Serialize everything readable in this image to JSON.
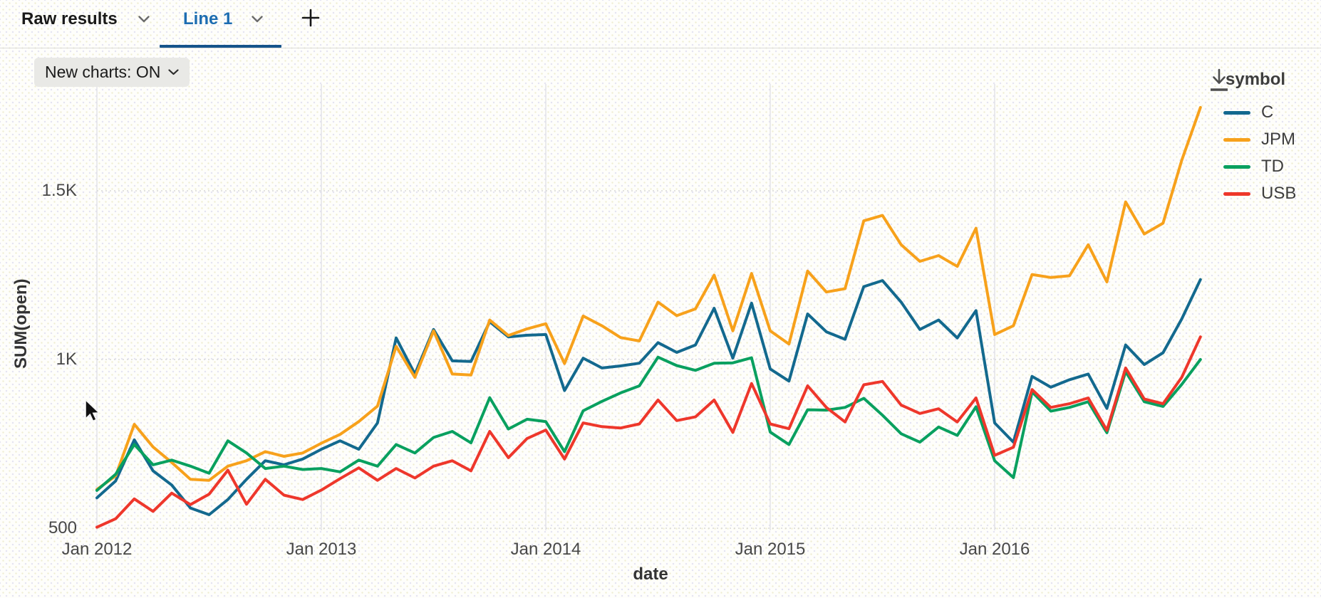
{
  "tab_bar": {
    "tabs": [
      {
        "label": "Raw results",
        "active": false
      },
      {
        "label": "Line 1",
        "active": true
      }
    ],
    "add_tab_label": "+"
  },
  "toolbar": {
    "new_charts_button": "New charts: ON"
  },
  "legend": {
    "title": "symbol"
  },
  "colors": {
    "active_tab_text": "#1d6db1",
    "active_tab_underline": "#15548a",
    "c_series": "#13698e",
    "jpm_series": "#f7a11b",
    "td_series": "#09a05f",
    "usb_series": "#ee372b"
  },
  "chart_data": {
    "type": "line",
    "xlabel": "date",
    "ylabel": "SUM(open)",
    "x_unit": "month",
    "x_start_label": "Jan 2012",
    "x_end_label": "Dec 2016",
    "legend_position": "top-right",
    "grid": {
      "horizontal": "dotted",
      "vertical": "solid"
    },
    "ylim": [
      440,
      1800
    ],
    "x_ticks": [
      {
        "label": "Jan 2012",
        "month_index": 0
      },
      {
        "label": "Jan 2013",
        "month_index": 12
      },
      {
        "label": "Jan 2014",
        "month_index": 24
      },
      {
        "label": "Jan 2015",
        "month_index": 36
      },
      {
        "label": "Jan 2016",
        "month_index": 48
      }
    ],
    "y_ticks": [
      {
        "label": "500",
        "value": 500
      },
      {
        "label": "1K",
        "value": 1000
      },
      {
        "label": "1.5K",
        "value": 1500
      }
    ],
    "series": [
      {
        "name": "C",
        "color": "#13698e",
        "values": [
          590,
          640,
          762,
          670,
          628,
          560,
          540,
          585,
          645,
          700,
          688,
          705,
          734,
          759,
          734,
          812,
          1064,
          957,
          1089,
          996,
          994,
          1112,
          1067,
          1072,
          1074,
          908,
          1004,
          975,
          981,
          989,
          1050,
          1021,
          1043,
          1152,
          1004,
          1167,
          972,
          936,
          1135,
          1082,
          1060,
          1216,
          1234,
          1170,
          1089,
          1117,
          1064,
          1145,
          812,
          755,
          950,
          918,
          940,
          957,
          855,
          1043,
          985,
          1020,
          1120,
          1237
        ]
      },
      {
        "name": "JPM",
        "color": "#f7a11b",
        "values": [
          615,
          655,
          808,
          741,
          695,
          645,
          642,
          684,
          700,
          727,
          713,
          723,
          752,
          778,
          816,
          862,
          1039,
          947,
          1085,
          957,
          954,
          1117,
          1071,
          1091,
          1106,
          988,
          1129,
          1100,
          1065,
          1055,
          1170,
          1130,
          1150,
          1250,
          1085,
          1255,
          1085,
          1046,
          1262,
          1200,
          1210,
          1411,
          1427,
          1340,
          1291,
          1308,
          1276,
          1389,
          1074,
          1100,
          1252,
          1243,
          1248,
          1340,
          1230,
          1467,
          1372,
          1404,
          1590,
          1747
        ]
      },
      {
        "name": "TD",
        "color": "#09a05f",
        "values": [
          612,
          660,
          748,
          688,
          702,
          684,
          663,
          759,
          723,
          677,
          684,
          674,
          677,
          667,
          702,
          684,
          748,
          723,
          769,
          787,
          753,
          887,
          794,
          823,
          816,
          727,
          848,
          876,
          901,
          922,
          1007,
          982,
          968,
          989,
          990,
          1005,
          785,
          748,
          851,
          850,
          858,
          885,
          835,
          780,
          755,
          800,
          775,
          860,
          700,
          650,
          904,
          847,
          858,
          875,
          783,
          964,
          875,
          861,
          926,
          1000
        ]
      },
      {
        "name": "USB",
        "color": "#ee372b",
        "values": [
          503,
          528,
          587,
          550,
          604,
          570,
          601,
          672,
          571,
          645,
          598,
          585,
          613,
          647,
          679,
          642,
          677,
          649,
          684,
          700,
          670,
          787,
          709,
          766,
          791,
          705,
          812,
          801,
          797,
          809,
          880,
          819,
          830,
          880,
          784,
          929,
          809,
          795,
          922,
          858,
          815,
          925,
          935,
          865,
          840,
          854,
          815,
          886,
          716,
          740,
          911,
          858,
          869,
          886,
          790,
          975,
          883,
          869,
          947,
          1067
        ]
      }
    ]
  }
}
